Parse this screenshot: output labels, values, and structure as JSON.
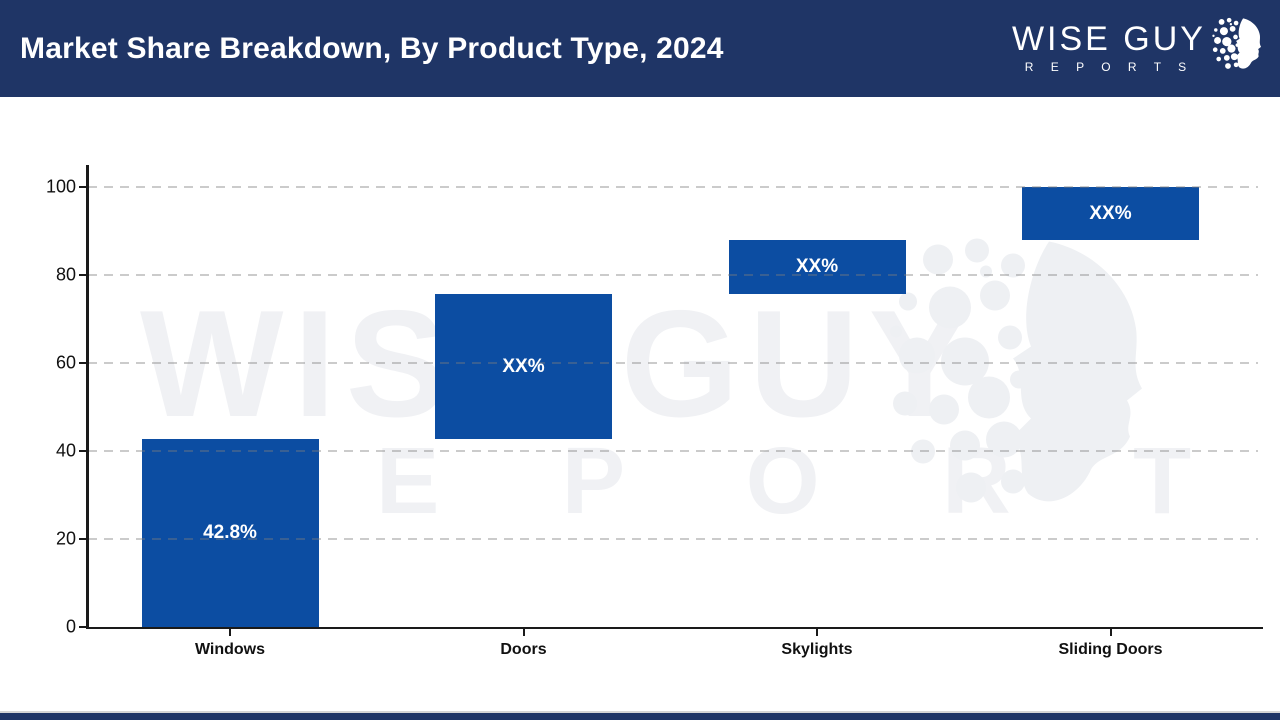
{
  "header": {
    "title": "Market Share Breakdown, By Product Type, 2024",
    "logo": {
      "line1": "WISE GUY",
      "line2": "R E P O R T S"
    }
  },
  "watermark": {
    "line1": "WISE GUY",
    "line2": "R E P O R T S"
  },
  "colors": {
    "header_bg": "#1F3566",
    "bar_fill": "#0C4DA2",
    "grid_dash": "#D9D9D9",
    "watermark": "#F0F1F4",
    "bar_label": "#FFFFFF",
    "axis": "#1A1A1A"
  },
  "chart_data": {
    "type": "bar",
    "subtype": "waterfall-floating-bars",
    "title": "Market Share Breakdown, By Product Type, 2024",
    "categories": [
      "Windows",
      "Doors",
      "Skylights",
      "Sliding Doors"
    ],
    "segments": [
      {
        "category": "Windows",
        "start": 0,
        "end": 42.8,
        "label": "42.8%"
      },
      {
        "category": "Doors",
        "start": 42.8,
        "end": 75.6,
        "label": "XX%"
      },
      {
        "category": "Skylights",
        "start": 75.6,
        "end": 87.9,
        "label": "XX%"
      },
      {
        "category": "Sliding Doors",
        "start": 87.9,
        "end": 100,
        "label": "XX%"
      }
    ],
    "yticks": [
      0,
      20,
      40,
      60,
      80,
      100
    ],
    "ylim": [
      0,
      105
    ],
    "grid": "horizontal-dashed",
    "legend": "none",
    "xlabel": "",
    "ylabel": ""
  }
}
